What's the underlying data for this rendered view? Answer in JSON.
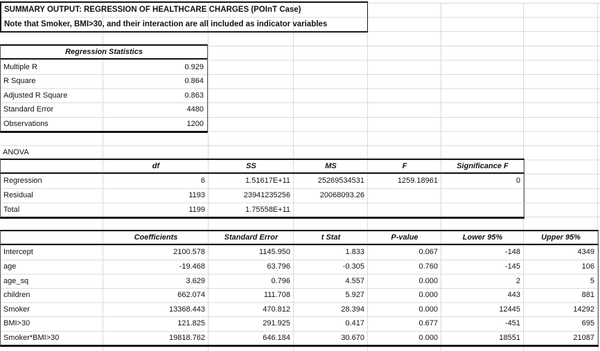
{
  "title": "SUMMARY OUTPUT: REGRESSION OF HEALTHCARE CHARGES (POInT Case)",
  "note": "Note that Smoker, BMI>30, and their interaction are all included as indicator variables",
  "regression_statistics": {
    "header": "Regression Statistics",
    "rows": [
      {
        "label": "Multiple R",
        "value": "0.929"
      },
      {
        "label": "R Square",
        "value": "0.864"
      },
      {
        "label": "Adjusted R Square",
        "value": "0.863"
      },
      {
        "label": "Standard Error",
        "value": "4480"
      },
      {
        "label": "Observations",
        "value": "1200"
      }
    ]
  },
  "anova": {
    "label": "ANOVA",
    "columns": [
      "df",
      "SS",
      "MS",
      "F",
      "Significance F"
    ],
    "rows": [
      {
        "source": "Regression",
        "df": "6",
        "ss": "1.51617E+11",
        "ms": "25269534531",
        "f": "1259.18961",
        "sig_f": "0"
      },
      {
        "source": "Residual",
        "df": "1193",
        "ss": "23941235256",
        "ms": "20068093.26",
        "f": "",
        "sig_f": ""
      },
      {
        "source": "Total",
        "df": "1199",
        "ss": "1.75558E+11",
        "ms": "",
        "f": "",
        "sig_f": ""
      }
    ]
  },
  "coefficients_table": {
    "columns": [
      "Coefficients",
      "Standard Error",
      "t Stat",
      "P-value",
      "Lower 95%",
      "Upper 95%"
    ],
    "rows": [
      {
        "name": "Intercept",
        "coef": "2100.578",
        "se": "1145.950",
        "t": "1.833",
        "p": "0.067",
        "lo": "-148",
        "hi": "4349"
      },
      {
        "name": "age",
        "coef": "-19.468",
        "se": "63.796",
        "t": "-0.305",
        "p": "0.760",
        "lo": "-145",
        "hi": "106"
      },
      {
        "name": "age_sq",
        "coef": "3.629",
        "se": "0.796",
        "t": "4.557",
        "p": "0.000",
        "lo": "2",
        "hi": "5"
      },
      {
        "name": "children",
        "coef": "662.074",
        "se": "111.708",
        "t": "5.927",
        "p": "0.000",
        "lo": "443",
        "hi": "881"
      },
      {
        "name": "Smoker",
        "coef": "13368.443",
        "se": "470.812",
        "t": "28.394",
        "p": "0.000",
        "lo": "12445",
        "hi": "14292"
      },
      {
        "name": "BMI>30",
        "coef": "121.825",
        "se": "291.925",
        "t": "0.417",
        "p": "0.677",
        "lo": "-451",
        "hi": "695"
      },
      {
        "name": "Smoker*BMI>30",
        "coef": "19818.762",
        "se": "646.184",
        "t": "30.670",
        "p": "0.000",
        "lo": "18551",
        "hi": "21087"
      }
    ]
  },
  "colors": {
    "background": "#ffffff",
    "gridline": "#d9d9d9",
    "border": "#141414",
    "text": "#111111"
  }
}
